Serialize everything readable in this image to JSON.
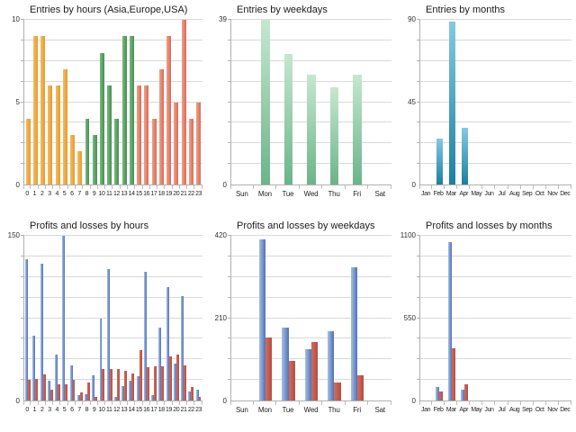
{
  "page": {
    "background": "#ffffff"
  },
  "chart_data": [
    {
      "id": "entries-by-hours",
      "type": "bar",
      "title": "Entries by hours (Asia,Europe,USA)",
      "categories": [
        "0",
        "1",
        "2",
        "3",
        "4",
        "5",
        "6",
        "7",
        "8",
        "9",
        "10",
        "11",
        "12",
        "13",
        "14",
        "15",
        "16",
        "17",
        "18",
        "19",
        "20",
        "21",
        "22",
        "23"
      ],
      "series": [
        {
          "name": "Entries",
          "values": [
            4,
            9,
            9,
            6,
            6,
            7,
            3,
            2,
            4,
            3,
            8,
            6,
            4,
            9,
            9,
            6,
            6,
            4,
            7,
            9,
            5,
            10,
            4,
            5
          ],
          "color_groups": [
            {
              "label": "Asia",
              "range": [
                0,
                7
              ],
              "colors": [
                "#f3bd62",
                "#e69a2e"
              ]
            },
            {
              "label": "Europe",
              "range": [
                8,
                14
              ],
              "colors": [
                "#7ab983",
                "#448f4e"
              ]
            },
            {
              "label": "USA",
              "range": [
                15,
                23
              ],
              "colors": [
                "#efa28e",
                "#d96b52"
              ]
            }
          ]
        }
      ],
      "ylim": [
        0,
        10
      ],
      "yticks": [
        {
          "value": 0,
          "label": "0"
        },
        {
          "value": 5,
          "label": "5"
        },
        {
          "value": 10,
          "label": "10"
        }
      ],
      "grid_intervals": 8,
      "bar_frac": 0.6,
      "gradient": "to right",
      "legend": "none"
    },
    {
      "id": "entries-by-weekdays",
      "type": "bar",
      "title": "Entries by weekdays",
      "categories": [
        "Sun",
        "Mon",
        "Tue",
        "Wed",
        "Thu",
        "Fri",
        "Sat"
      ],
      "series": [
        {
          "name": "Entries",
          "values": [
            0,
            39,
            31,
            26,
            23,
            26,
            0
          ],
          "colors": [
            "#c5e7d0",
            "#6bb488"
          ]
        }
      ],
      "ylim": [
        0,
        39
      ],
      "yticks": [
        {
          "value": 0,
          "label": "0"
        },
        {
          "value": 39,
          "label": "39"
        }
      ],
      "grid_intervals": 8,
      "bar_frac": 0.38,
      "gradient": "to bottom",
      "legend": "none"
    },
    {
      "id": "entries-by-months",
      "type": "bar",
      "title": "Entries by months",
      "categories": [
        "Jan",
        "Feb",
        "Mar",
        "Apr",
        "May",
        "Jun",
        "Jul",
        "Aug",
        "Sep",
        "Oct",
        "Nov",
        "Dec"
      ],
      "series": [
        {
          "name": "Entries",
          "values": [
            0,
            25,
            89,
            31,
            0,
            0,
            0,
            0,
            0,
            0,
            0,
            0
          ],
          "colors": [
            "#85c9df",
            "#1c7fa2"
          ]
        }
      ],
      "ylim": [
        0,
        90
      ],
      "yticks": [
        {
          "value": 0,
          "label": "0"
        },
        {
          "value": 45,
          "label": "45"
        },
        {
          "value": 90,
          "label": "90"
        }
      ],
      "grid_intervals": 8,
      "bar_frac": 0.5,
      "gradient": "to bottom",
      "legend": "none"
    },
    {
      "id": "profits-losses-by-hours",
      "type": "bar",
      "title": "Profits and losses by hours",
      "categories": [
        "0",
        "1",
        "2",
        "3",
        "4",
        "5",
        "6",
        "7",
        "8",
        "9",
        "10",
        "11",
        "12",
        "13",
        "14",
        "15",
        "16",
        "17",
        "18",
        "19",
        "20",
        "21",
        "22",
        "23"
      ],
      "series": [
        {
          "name": "Profits",
          "values": [
            129,
            59,
            125,
            18,
            42,
            150,
            32,
            5,
            6,
            23,
            75,
            120,
            3,
            13,
            18,
            22,
            117,
            5,
            66,
            103,
            34,
            95,
            8,
            10
          ],
          "colors": [
            "#a9c0e6",
            "#4d71b4"
          ]
        },
        {
          "name": "Losses",
          "values": [
            19,
            20,
            24,
            10,
            15,
            15,
            19,
            7,
            16,
            3,
            29,
            29,
            29,
            27,
            25,
            46,
            30,
            31,
            31,
            40,
            42,
            32,
            12,
            3
          ],
          "colors": [
            "#cf6f60",
            "#b84a40"
          ]
        }
      ],
      "ylim": [
        0,
        150
      ],
      "yticks": [
        {
          "value": 0,
          "label": "0"
        },
        {
          "value": 150,
          "label": "150"
        }
      ],
      "grid_intervals": 8,
      "bar_frac": 0.36,
      "gradient": "to right",
      "legend": "none"
    },
    {
      "id": "profits-losses-by-weekdays",
      "type": "bar",
      "title": "Profits and losses by weekdays",
      "categories": [
        "Sun",
        "Mon",
        "Tue",
        "Wed",
        "Thu",
        "Fri",
        "Sat"
      ],
      "series": [
        {
          "name": "Profits",
          "values": [
            0,
            410,
            185,
            132,
            177,
            340,
            0
          ],
          "colors": [
            "#a9c0e6",
            "#4d71b4"
          ]
        },
        {
          "name": "Losses",
          "values": [
            0,
            161,
            102,
            149,
            45,
            65,
            0
          ],
          "colors": [
            "#cf6f60",
            "#b84a40"
          ]
        }
      ],
      "ylim": [
        0,
        420
      ],
      "yticks": [
        {
          "value": 0,
          "label": "0"
        },
        {
          "value": 210,
          "label": "210"
        },
        {
          "value": 420,
          "label": "420"
        }
      ],
      "grid_intervals": 8,
      "bar_frac": 0.28,
      "gradient": "to right",
      "legend": "none"
    },
    {
      "id": "profits-losses-by-months",
      "type": "bar",
      "title": "Profits and losses by months",
      "categories": [
        "Jan",
        "Feb",
        "Mar",
        "Apr",
        "May",
        "Jun",
        "Jul",
        "Aug",
        "Sep",
        "Oct",
        "Nov",
        "Dec"
      ],
      "series": [
        {
          "name": "Profits",
          "values": [
            0,
            92,
            1061,
            72,
            0,
            0,
            0,
            0,
            0,
            0,
            0,
            0
          ],
          "colors": [
            "#a9c0e6",
            "#4d71b4"
          ]
        },
        {
          "name": "Losses",
          "values": [
            0,
            63,
            346,
            106,
            0,
            0,
            0,
            0,
            0,
            0,
            0,
            0
          ],
          "colors": [
            "#cf6f60",
            "#b84a40"
          ]
        }
      ],
      "ylim": [
        0,
        1100
      ],
      "yticks": [
        {
          "value": 0,
          "label": "0"
        },
        {
          "value": 550,
          "label": "550"
        },
        {
          "value": 1100,
          "label": "1100"
        }
      ],
      "grid_intervals": 8,
      "bar_frac": 0.28,
      "gradient": "to right",
      "legend": "none"
    }
  ]
}
